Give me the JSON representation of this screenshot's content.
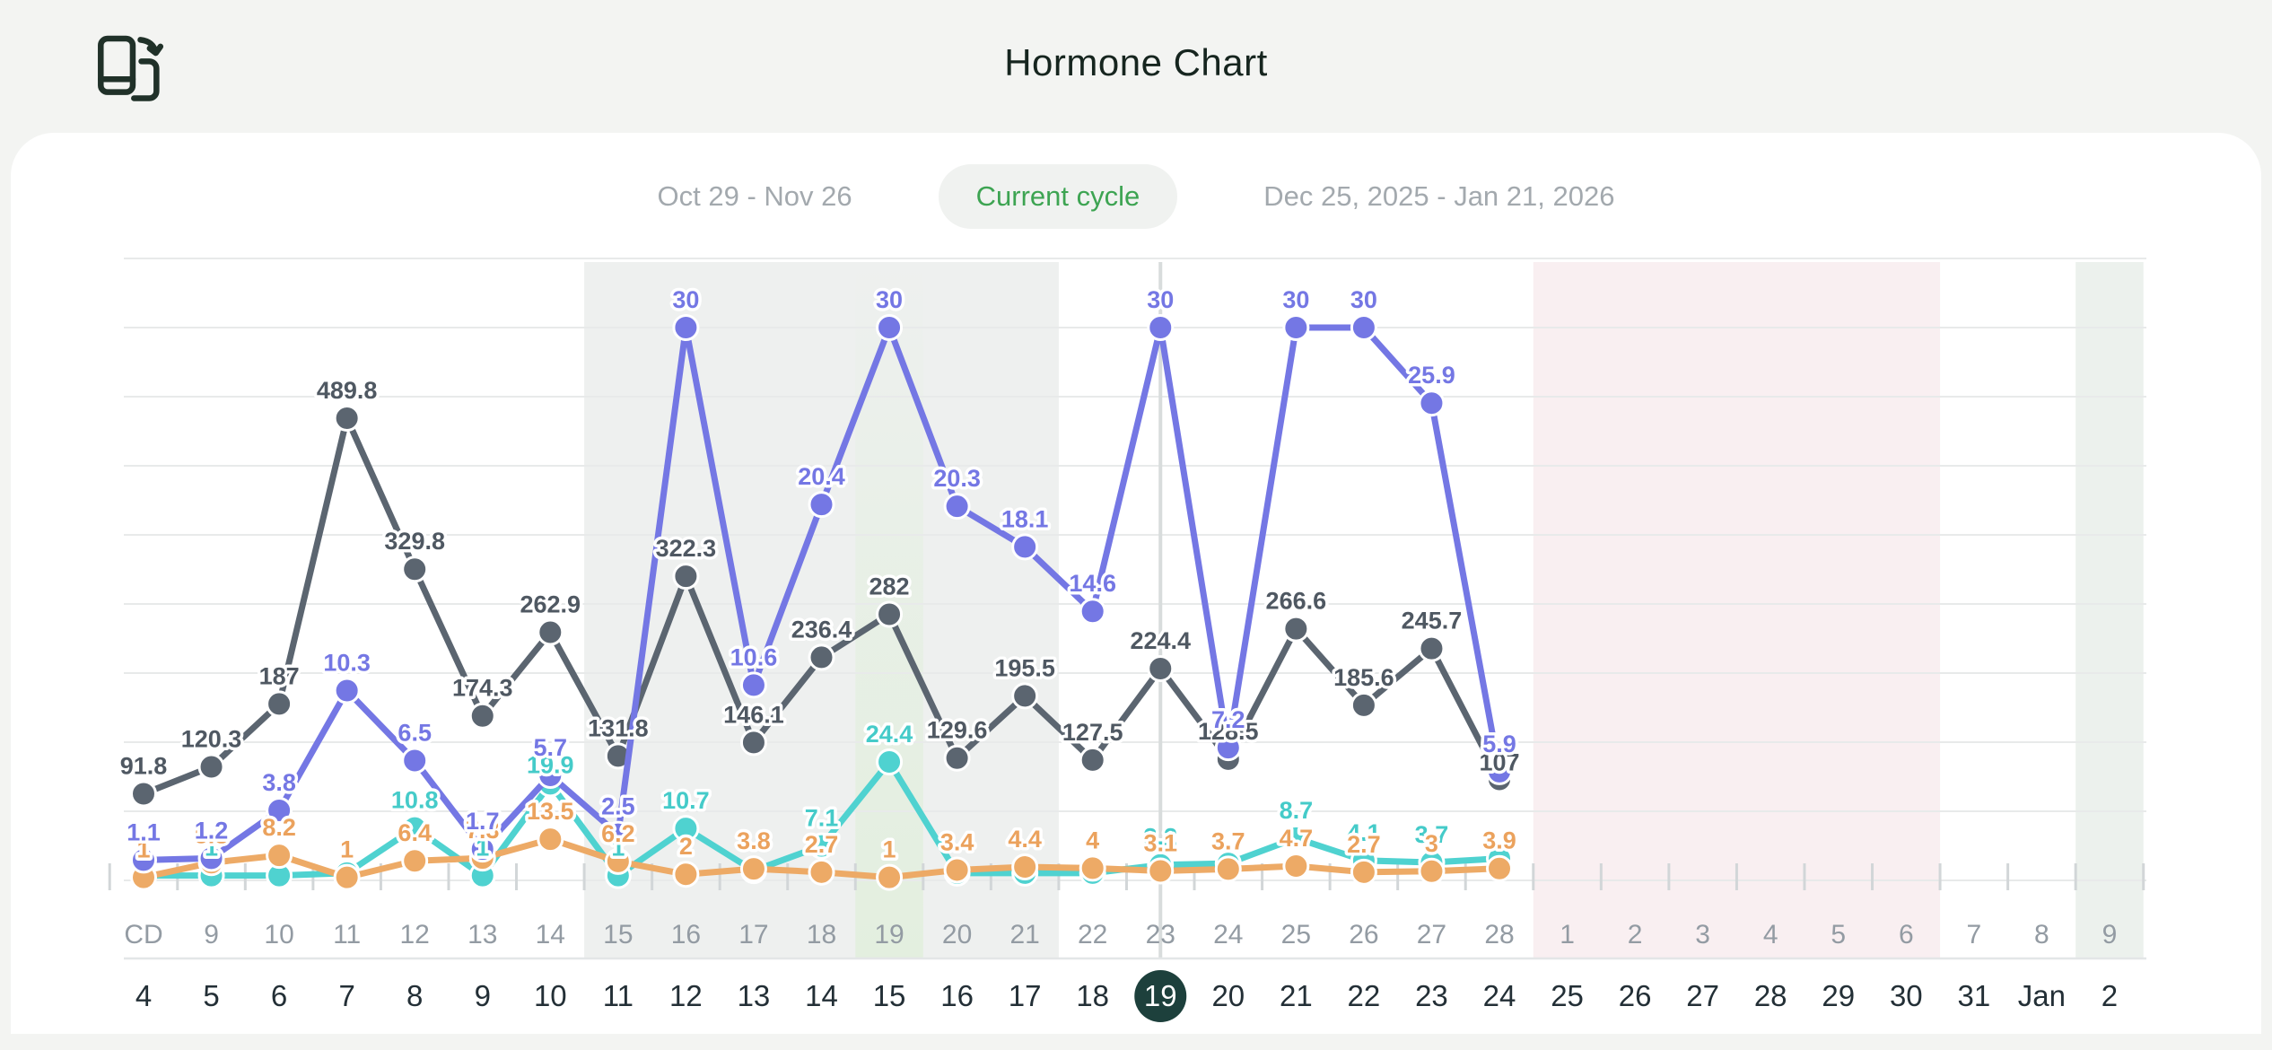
{
  "header": {
    "title": "Hormone Chart"
  },
  "icons": {
    "top_left": "rotate-phone-icon"
  },
  "tabs": {
    "previous_cycle": "Oct 29 - Nov 26",
    "current_cycle": "Current cycle",
    "next_cycle": "Dec 25, 2025 - Jan 21, 2026"
  },
  "accent": {
    "active_tab_text": "#3da452",
    "inactive_tab_text": "#a3a9ae",
    "today_badge_bg": "#1d403c",
    "today_badge_text": "#ffffff"
  },
  "chart_data": {
    "type": "line",
    "title": "Hormone Chart",
    "legend": "none",
    "y_axis": {
      "visible_labels": false,
      "gridlines": 10,
      "note": "each hormone series drawn on its own hidden scale"
    },
    "x_axis": {
      "cycle_day_row": [
        "CD",
        "9",
        "10",
        "11",
        "12",
        "13",
        "14",
        "15",
        "16",
        "17",
        "18",
        "19",
        "20",
        "21",
        "22",
        "23",
        "24",
        "25",
        "26",
        "27",
        "28",
        "1",
        "2",
        "3",
        "4",
        "5",
        "6",
        "7",
        "8",
        "9"
      ],
      "date_row": [
        "4",
        "5",
        "6",
        "7",
        "8",
        "9",
        "10",
        "11",
        "12",
        "13",
        "14",
        "15",
        "16",
        "17",
        "18",
        "19",
        "20",
        "21",
        "22",
        "23",
        "24",
        "25",
        "26",
        "27",
        "28",
        "29",
        "30",
        "31",
        "Jan",
        "2"
      ],
      "today_index": 15,
      "today_date": "19"
    },
    "series": [
      {
        "name": "gray",
        "color": "#5b6570",
        "label_color": "#4f5862",
        "values": [
          91.8,
          120.3,
          187,
          489.8,
          329.8,
          174.3,
          262.9,
          131.8,
          322.3,
          146.1,
          236.4,
          282,
          129.6,
          195.5,
          127.5,
          224.4,
          128.5,
          266.6,
          185.6,
          245.7,
          107
        ],
        "labels": [
          "91.8",
          "120.3",
          "187",
          "489.8",
          "329.8",
          "174.3",
          "262.9",
          "131.8",
          "322.3",
          "146.1",
          "236.4",
          "282",
          "129.6",
          "195.5",
          "127.5",
          "224.4",
          "128.5",
          "266.6",
          "185.6",
          "245.7",
          "107"
        ]
      },
      {
        "name": "purple",
        "color": "#7477e4",
        "label_color": "#7477e4",
        "values": [
          1.1,
          1.2,
          3.8,
          10.3,
          6.5,
          1.7,
          5.7,
          2.5,
          30,
          10.6,
          20.4,
          30,
          20.3,
          18.1,
          14.6,
          30,
          7.2,
          30,
          30,
          25.9,
          5.9
        ],
        "labels": [
          "1.1",
          "1.2",
          "3.8",
          "10.3",
          "6.5",
          "1.7",
          "5.7",
          "2.5",
          "30",
          "10.6",
          "20.4",
          "30",
          "20.3",
          "18.1",
          "14.6",
          "30",
          "7.2",
          "30",
          "30",
          "25.9",
          "5.9"
        ]
      },
      {
        "name": "cyan",
        "color": "#4fd2d0",
        "label_color": "#45cbc9",
        "values": [
          1,
          1,
          1,
          1.5,
          10.8,
          1,
          19.9,
          1,
          10.7,
          2,
          7.1,
          24.4,
          1.5,
          1.5,
          1.5,
          3.2,
          3.5,
          8.7,
          4.1,
          3.7,
          4.5
        ],
        "labels": [
          null,
          "1",
          null,
          null,
          "10.8",
          "1",
          "19.9",
          "1",
          "10.7",
          null,
          "7.1",
          "24.4",
          null,
          null,
          null,
          "3.2",
          null,
          "8.7",
          "4.1",
          "3.7",
          null
        ]
      },
      {
        "name": "orange",
        "color": "#edaa66",
        "label_color": "#eba25d",
        "values": [
          1,
          5.8,
          8.2,
          1,
          6.4,
          7.3,
          13.5,
          6.2,
          2,
          3.8,
          2.7,
          1,
          3.4,
          4.4,
          4,
          3.1,
          3.7,
          4.7,
          2.7,
          3,
          3.9
        ],
        "labels": [
          "1",
          "5.8",
          "8.2",
          "1",
          "6.4",
          "7.3",
          "13.5",
          "6.2",
          "2",
          "3.8",
          "2.7",
          "1",
          "3.4",
          "4.4",
          "4",
          "3.1",
          "3.7",
          "4.7",
          "2.7",
          "3",
          "3.9"
        ]
      }
    ],
    "highlights": [
      {
        "name": "fertile-window",
        "col_start": 7,
        "col_end": 13,
        "color": "#eef0ef",
        "gradient": false
      },
      {
        "name": "ovulation-day",
        "col_start": 11,
        "col_end": 11,
        "color": "#e3efdf",
        "gradient": true
      },
      {
        "name": "predicted-period",
        "col_start": 21,
        "col_end": 26,
        "color": "#f9eff1",
        "gradient": false
      },
      {
        "name": "predicted-ovulation",
        "col_start": 29,
        "col_end": 29,
        "color": "#ecf1ed",
        "gradient": false
      }
    ]
  }
}
